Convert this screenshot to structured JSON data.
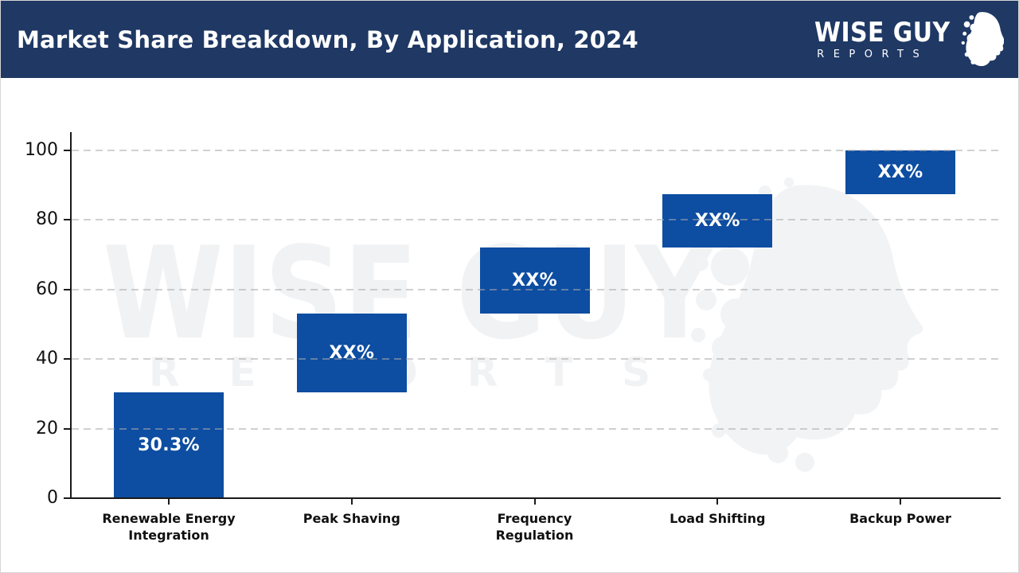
{
  "header": {
    "title": "Market Share Breakdown, By Application, 2024",
    "background_color": "#1f3864",
    "logo": {
      "brand_line1": "WISE GUY",
      "brand_line2": "REPORTS"
    }
  },
  "watermark": {
    "line1": "WISE GUY",
    "line2": "REPORTS"
  },
  "chart_data": {
    "type": "bar",
    "subtype": "waterfall",
    "title": "Market Share Breakdown, By Application, 2024",
    "categories": [
      [
        "Renewable Energy",
        "Integration"
      ],
      [
        "Peak Shaving"
      ],
      [
        "Frequency",
        "Regulation"
      ],
      [
        "Load Shifting"
      ],
      [
        "Backup Power"
      ]
    ],
    "segments": [
      {
        "category": "Renewable Energy Integration",
        "start": 0,
        "end": 30.3,
        "label": "30.3%"
      },
      {
        "category": "Peak Shaving",
        "start": 30.3,
        "end": 53,
        "label": "XX%"
      },
      {
        "category": "Frequency Regulation",
        "start": 53,
        "end": 72,
        "label": "XX%"
      },
      {
        "category": "Load Shifting",
        "start": 72,
        "end": 87.3,
        "label": "XX%"
      },
      {
        "category": "Backup Power",
        "start": 87.3,
        "end": 100,
        "label": "XX%"
      }
    ],
    "ylim": [
      0,
      100
    ],
    "yticks": [
      0,
      20,
      40,
      60,
      80,
      100
    ],
    "xlabel": "",
    "ylabel": "",
    "grid": "horizontal-dashed",
    "legend": "none",
    "bar_color": "#0d4da2",
    "bar_label_color": "#ffffff",
    "axis_color": "#1a1a1a",
    "gridline_color": "#d9d9d9"
  }
}
